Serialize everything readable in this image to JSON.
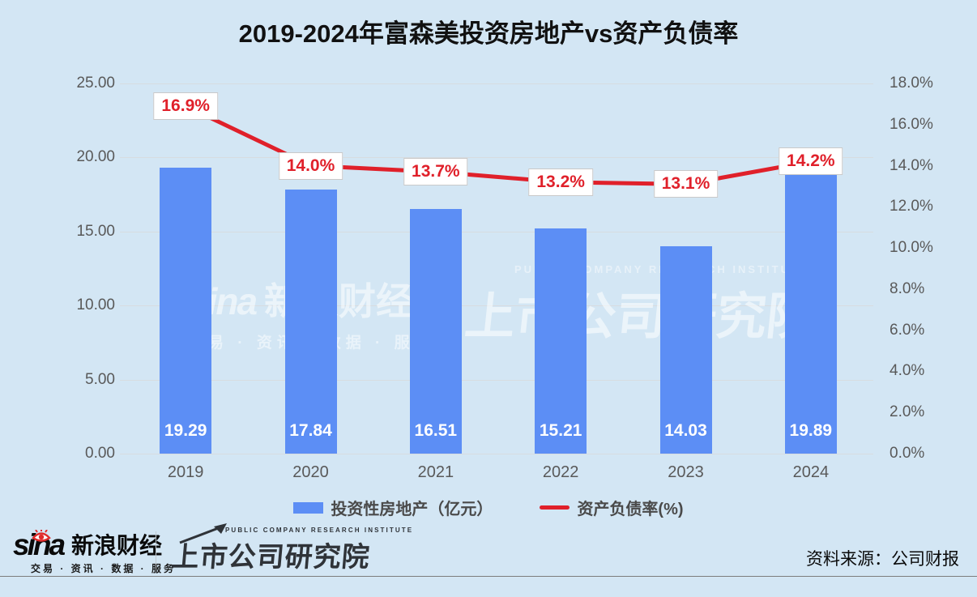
{
  "title": "2019-2024年富森美投资房地产vs资产负债率",
  "chart_data": {
    "type": "bar+line",
    "categories": [
      "2019",
      "2020",
      "2021",
      "2022",
      "2023",
      "2024"
    ],
    "series": [
      {
        "name": "投资性房地产（亿元）",
        "type": "bar",
        "axis": "left",
        "values": [
          19.29,
          17.84,
          16.51,
          15.21,
          14.03,
          19.89
        ],
        "labels": [
          "19.29",
          "17.84",
          "16.51",
          "15.21",
          "14.03",
          "19.89"
        ]
      },
      {
        "name": "资产负债率(%)",
        "type": "line",
        "axis": "right",
        "values": [
          16.9,
          14.0,
          13.7,
          13.2,
          13.1,
          14.2
        ],
        "labels": [
          "16.9%",
          "14.0%",
          "13.7%",
          "13.2%",
          "13.1%",
          "14.2%"
        ]
      }
    ],
    "left_axis": {
      "min": 0,
      "max": 25,
      "ticks": [
        "25.00",
        "20.00",
        "15.00",
        "10.00",
        "5.00",
        "0.00"
      ]
    },
    "right_axis": {
      "min": 0,
      "max": 18,
      "ticks": [
        "18.0%",
        "16.0%",
        "14.0%",
        "12.0%",
        "10.0%",
        "8.0%",
        "6.0%",
        "4.0%",
        "2.0%",
        "0.0%"
      ]
    },
    "grid": true,
    "legend_position": "bottom"
  },
  "legend": [
    {
      "label": "投资性房地产（亿元）",
      "color": "#5c8ef5",
      "type": "bar"
    },
    {
      "label": "资产负债率(%)",
      "color": "#e0202a",
      "type": "line"
    }
  ],
  "watermark": {
    "left_main": "sina",
    "left_brand": "新浪财经",
    "left_sub": "交易 · 资讯 · 数据 · 服务",
    "right_top": "PUBLIC COMPANY RESEARCH INSTITUTE",
    "right_main": "上市公司研究院"
  },
  "footer": {
    "sina_word": "sina",
    "sina_brand": "新浪财经",
    "sina_tagline": "交易 · 资讯 · 数据 · 服务",
    "institute_en": "PUBLIC COMPANY RESEARCH INSTITUTE",
    "institute_cn": "上市公司研究院",
    "source": "资料来源：公司财报"
  },
  "colors": {
    "background": "#d3e6f4",
    "bar": "#5c8ef5",
    "line": "#e0202a",
    "label_red": "#e0202a",
    "grid": "#d7dce0",
    "axis_text": "#595959",
    "title": "#111111",
    "footer_ink": "#2f3338"
  }
}
